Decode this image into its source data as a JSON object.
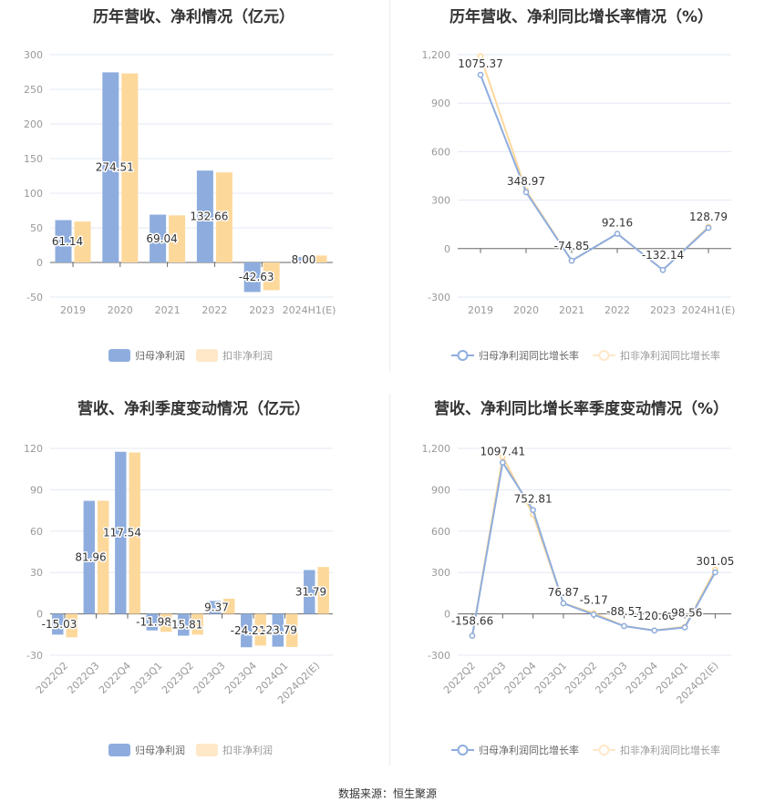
{
  "source_label": "数据来源：恒生聚源",
  "colors": {
    "blue": "#8eadde",
    "orange": "#fdd89b",
    "orange_legend": "#fee8c8",
    "grid": "#e3e8f2",
    "axis": "#666666",
    "tick_label": "#999999",
    "data_label": "#333333"
  },
  "chart_data": [
    {
      "id": "annual_profit",
      "type": "bar",
      "title": "历年营收、净利情况（亿元）",
      "categories": [
        "2019",
        "2020",
        "2021",
        "2022",
        "2023",
        "2024H1(E)"
      ],
      "series": [
        {
          "name": "归母净利润",
          "values": [
            61.14,
            274.51,
            69.04,
            132.66,
            -42.63,
            8.0
          ],
          "labels": [
            "61.14",
            "274.51",
            "69.04",
            "132.66",
            "-42.63",
            "8.00"
          ]
        },
        {
          "name": "扣非净利润",
          "values": [
            59,
            273,
            68,
            130,
            -40,
            10
          ]
        }
      ],
      "yticks": [
        300,
        250,
        200,
        150,
        100,
        50,
        0,
        -50
      ],
      "ylim": [
        -50,
        300
      ],
      "grid": true,
      "legend_position": "bottom"
    },
    {
      "id": "annual_growth",
      "type": "line",
      "title": "历年营收、净利同比增长率情况（%）",
      "categories": [
        "2019",
        "2020",
        "2021",
        "2022",
        "2023",
        "2024H1(E)"
      ],
      "series": [
        {
          "name": "归母净利润同比增长率",
          "values": [
            1075.37,
            348.97,
            -74.85,
            92.16,
            -132.14,
            128.79
          ],
          "labels": [
            "1075.37",
            "348.97",
            "-74.85",
            "92.16",
            "-132.14",
            "128.79"
          ]
        },
        {
          "name": "扣非净利润同比增长率",
          "values": [
            1190,
            360,
            -75,
            92,
            -132,
            135
          ]
        }
      ],
      "yticks": [
        "1,200",
        "900",
        "600",
        "300",
        "0",
        "-300"
      ],
      "ytick_values": [
        1200,
        900,
        600,
        300,
        0,
        -300
      ],
      "ylim": [
        -300,
        1200
      ],
      "grid": true,
      "legend_position": "bottom"
    },
    {
      "id": "quarterly_profit",
      "type": "bar",
      "title": "营收、净利季度变动情况（亿元）",
      "categories": [
        "2022Q2",
        "2022Q3",
        "2022Q4",
        "2023Q1",
        "2023Q2",
        "2023Q3",
        "2023Q4",
        "2024Q1",
        "2024Q2(E)"
      ],
      "series": [
        {
          "name": "归母净利润",
          "values": [
            -15.03,
            81.96,
            117.54,
            -11.98,
            -15.81,
            9.37,
            -24.21,
            -23.79,
            31.79
          ],
          "labels": [
            "-15.03",
            "81.96",
            "117.54",
            "-11.98",
            "-15.81",
            "9.37",
            "-24.21",
            "-23.79",
            "31.79"
          ]
        },
        {
          "name": "扣非净利润",
          "values": [
            -17,
            82,
            117,
            -13,
            -15,
            11,
            -23,
            -24,
            34
          ]
        }
      ],
      "yticks": [
        120,
        90,
        60,
        30,
        0,
        -30
      ],
      "ylim": [
        -30,
        120
      ],
      "grid": true,
      "legend_position": "bottom"
    },
    {
      "id": "quarterly_growth",
      "type": "line",
      "title": "营收、净利同比增长率季度变动情况（%）",
      "categories": [
        "2022Q2",
        "2022Q3",
        "2022Q4",
        "2023Q1",
        "2023Q2",
        "2023Q3",
        "2023Q4",
        "2024Q1",
        "2024Q2(E)"
      ],
      "series": [
        {
          "name": "归母净利润同比增长率",
          "values": [
            -158.66,
            1097.41,
            752.81,
            76.87,
            -5.17,
            -88.57,
            -120.6,
            -98.56,
            301.05
          ],
          "labels": [
            "-158.66",
            "1097.41",
            "752.81",
            "76.87",
            "-5.17",
            "-88.57",
            "-120.60",
            "-98.56",
            "301.05"
          ]
        },
        {
          "name": "扣非净利润同比增长率",
          "values": [
            -158,
            1140,
            720,
            77,
            5,
            -88,
            -120,
            -93,
            320
          ]
        }
      ],
      "yticks": [
        "1,200",
        "900",
        "600",
        "300",
        "0",
        "-300"
      ],
      "ytick_values": [
        1200,
        900,
        600,
        300,
        0,
        -300
      ],
      "ylim": [
        -300,
        1200
      ],
      "grid": true,
      "legend_position": "bottom"
    }
  ]
}
